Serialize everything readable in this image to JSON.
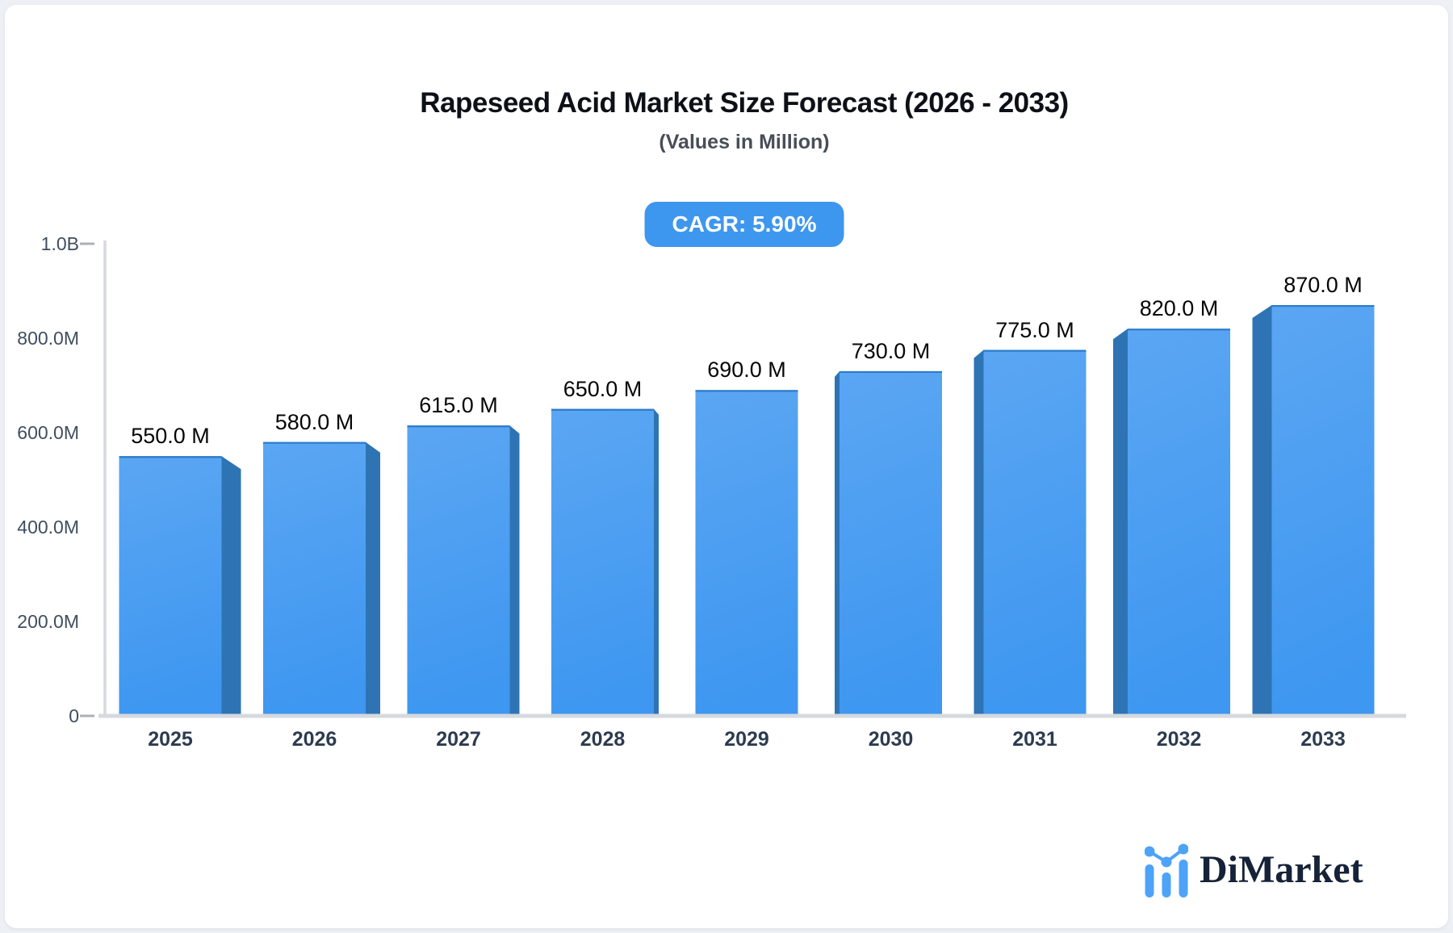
{
  "header": {
    "title": "Rapeseed Acid Market Size Forecast (2026 - 2033)",
    "subtitle": "(Values in Million)",
    "badge_label": "CAGR: 5.90%",
    "badge_color": "#3e97ee"
  },
  "chart_data": {
    "type": "bar",
    "title": "Rapeseed Acid Market Size Forecast (2026 - 2033)",
    "subtitle": "(Values in Million)",
    "cagr": "5.90%",
    "categories": [
      "2025",
      "2026",
      "2027",
      "2028",
      "2029",
      "2030",
      "2031",
      "2032",
      "2033"
    ],
    "values": [
      550,
      580,
      615,
      650,
      690,
      730,
      775,
      820,
      870
    ],
    "value_labels": [
      "550.0 M",
      "580.0 M",
      "615.0 M",
      "650.0 M",
      "690.0 M",
      "730.0 M",
      "775.0 M",
      "820.0 M",
      "870.0 M"
    ],
    "value_unit": "Million",
    "xlabel": "",
    "ylabel": "",
    "ylim": [
      0,
      1000
    ],
    "y_ticks": [
      {
        "label": "1.0B",
        "value": 1000,
        "dash": true
      },
      {
        "label": "800.0M",
        "value": 800,
        "dash": false
      },
      {
        "label": "600.0M",
        "value": 600,
        "dash": false
      },
      {
        "label": "400.0M",
        "value": 400,
        "dash": false
      },
      {
        "label": "200.0M",
        "value": 200,
        "dash": false
      },
      {
        "label": "0",
        "value": 0,
        "dash": true
      }
    ],
    "grid": false,
    "legend": null,
    "bar_face_color_top": "#5ba6f3",
    "bar_face_color_bottom": "#3e97f0",
    "bar_side_color": "#2e74b4",
    "bar_top_edge_color": "#2a7cc9",
    "axis_line_color": "#d6d9de",
    "tick_color": "#a9b1ba"
  },
  "footer": {
    "brand": "DiMarket",
    "brand_text_color": "#152238",
    "logo_color": "#4da3f7"
  }
}
